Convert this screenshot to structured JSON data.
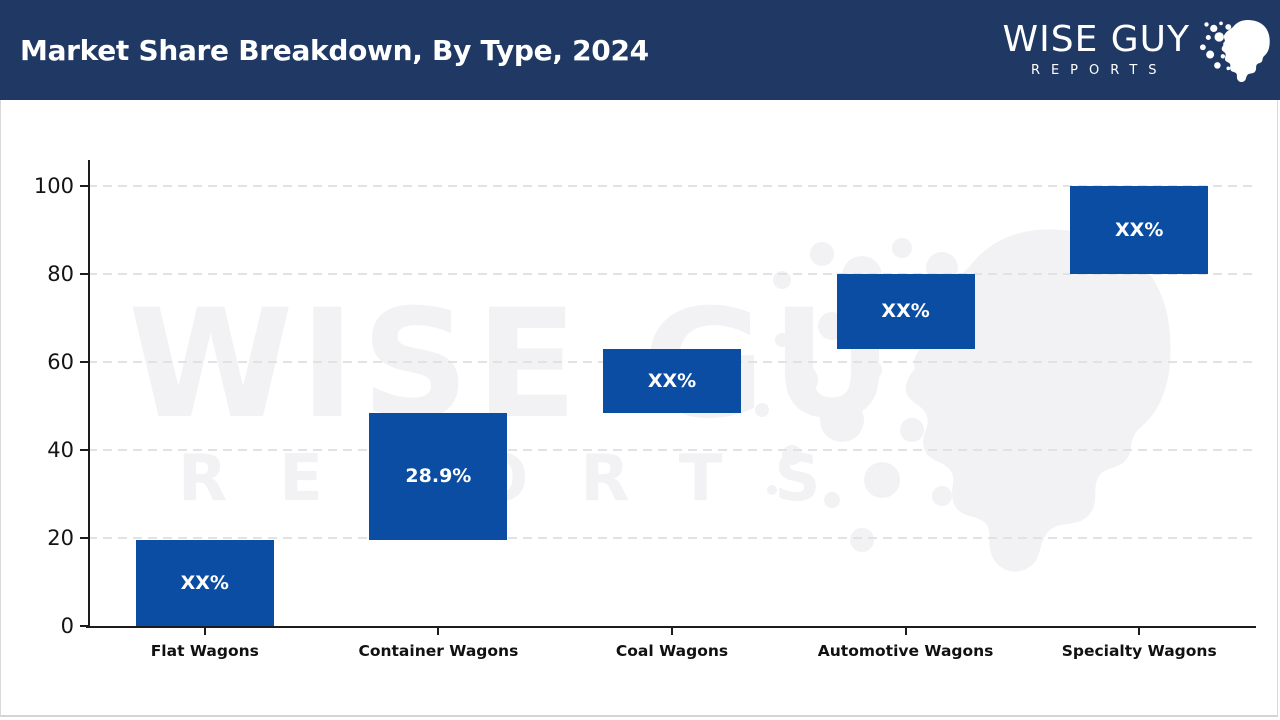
{
  "header": {
    "title": "Market Share Breakdown, By Type, 2024",
    "logo": {
      "line1": "WISE GUY",
      "line2": "REPORTS"
    }
  },
  "watermark": {
    "line1": "WISE GUY",
    "line2": "REPORTS"
  },
  "chart_data": {
    "type": "bar",
    "subtype": "waterfall",
    "title": "Market Share Breakdown, By Type, 2024",
    "xlabel": "",
    "ylabel": "",
    "categories": [
      "Flat Wagons",
      "Container Wagons",
      "Coal Wagons",
      "Automotive Wagons",
      "Specialty Wagons"
    ],
    "segments": [
      {
        "category": "Flat Wagons",
        "start": 0,
        "end": 19.6,
        "label": "XX%"
      },
      {
        "category": "Container Wagons",
        "start": 19.6,
        "end": 48.5,
        "label": "28.9%"
      },
      {
        "category": "Coal Wagons",
        "start": 48.5,
        "end": 63.0,
        "label": "XX%"
      },
      {
        "category": "Automotive Wagons",
        "start": 63.0,
        "end": 80.1,
        "label": "XX%"
      },
      {
        "category": "Specialty Wagons",
        "start": 80.1,
        "end": 100,
        "label": "XX%"
      }
    ],
    "yticks": [
      0,
      20,
      40,
      60,
      80,
      100
    ],
    "ylim": [
      0,
      106
    ],
    "grid": "horizontal-dashed",
    "legend": "none",
    "bar_color": "#0b4da2",
    "bar_label_color": "#ffffff"
  },
  "colors": {
    "header_bg": "#1f3864",
    "bar": "#0b4da2",
    "grid": "#e2e2e2",
    "axis": "#1c1c1c",
    "watermark": "#f2f2f4",
    "background": "#ffffff"
  }
}
